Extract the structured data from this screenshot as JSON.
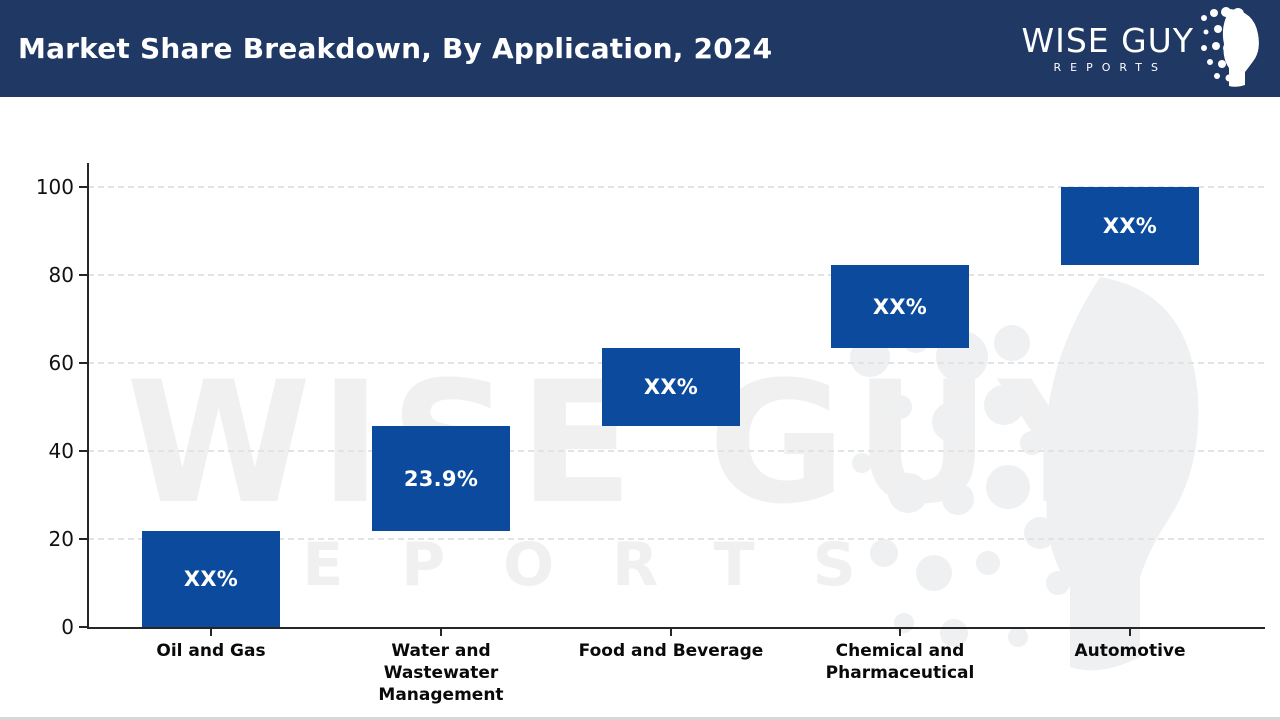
{
  "header": {
    "title": "Market Share Breakdown, By Application, 2024",
    "logo_line1": "WISE GUY",
    "logo_line2": "REPORTS"
  },
  "watermark": {
    "line1": "WISE GUY",
    "line2": "REPORTS"
  },
  "colors": {
    "header_bg": "#1f3864",
    "bar_blue": "#0b4a9c",
    "gridline": "#e3e3e3",
    "axis": "#262626",
    "watermark": "#f0f0f1"
  },
  "chart_data": {
    "type": "bar",
    "subtype": "waterfall",
    "title": "Market Share Breakdown, By Application, 2024",
    "categories": [
      "Oil and Gas",
      "Water and\nWastewater\nManagement",
      "Food and Beverage",
      "Chemical and\nPharmaceutical",
      "Automotive"
    ],
    "segments": [
      {
        "category": "Oil and Gas",
        "start": 0,
        "end": 21.8,
        "value": 21.8,
        "label": "XX%"
      },
      {
        "category": "Water and Wastewater Management",
        "start": 21.8,
        "end": 45.7,
        "value": 23.9,
        "label": "23.9%"
      },
      {
        "category": "Food and Beverage",
        "start": 45.7,
        "end": 63.4,
        "value": 17.7,
        "label": "XX%"
      },
      {
        "category": "Chemical and Pharmaceutical",
        "start": 63.4,
        "end": 82.3,
        "value": 18.9,
        "label": "XX%"
      },
      {
        "category": "Automotive",
        "start": 82.3,
        "end": 100,
        "value": 17.7,
        "label": "XX%"
      }
    ],
    "yticks": [
      0,
      20,
      40,
      60,
      80,
      100
    ],
    "ylim": [
      0,
      105.5
    ],
    "xlabel": "",
    "ylabel": "",
    "grid": "horizontal-dashed",
    "legend": "none",
    "bar_color": "#0b4a9c"
  }
}
